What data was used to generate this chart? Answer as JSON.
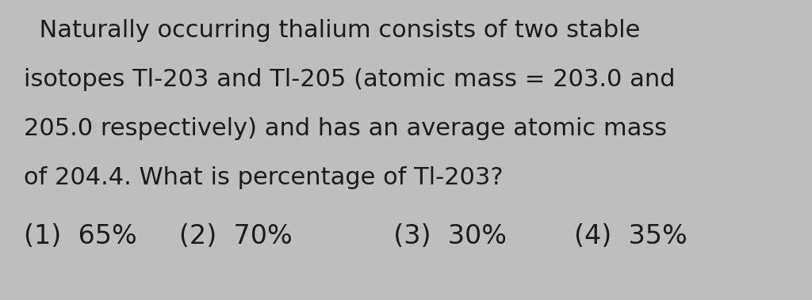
{
  "background_color": "#bebebe",
  "paragraph_lines": [
    "  Naturally occurring thalium consists of two stable",
    "isotopes Tl-203 and Tl-205 (atomic mass = 203.0 and",
    "205.0 respectively) and has an average atomic mass",
    "of 204.4. What is percentage of Tl-203?"
  ],
  "options_text": "(1)  65%     (2)  70%            (3)  30%        (4)  35%",
  "text_color": "#1c1c1c",
  "font_size_paragraph": 22,
  "font_size_options": 24,
  "font_family": "DejaVu Sans"
}
